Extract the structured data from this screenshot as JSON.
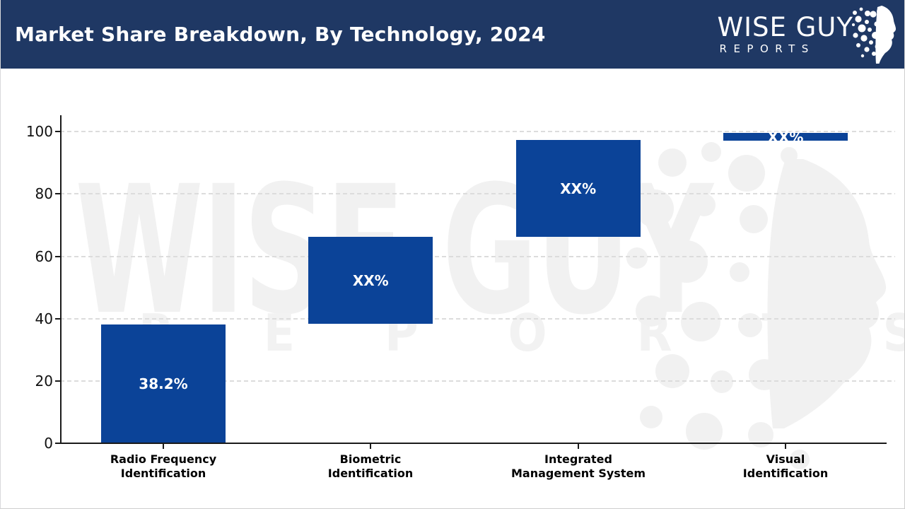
{
  "header": {
    "title": "Market Share Breakdown, By Technology, 2024",
    "brand_name": "WISE GUY",
    "brand_sub": "REPORTS",
    "bg_color": "#1f3864",
    "text_color": "#ffffff"
  },
  "icons": {
    "logo_head": "dotted-face-profile",
    "watermark_head": "dotted-face-profile"
  },
  "watermark": {
    "line1": "WISE GUY",
    "line2": "R E P O R T S",
    "color": "#f1f1f1"
  },
  "chart_data": {
    "type": "bar",
    "subtype": "waterfall-segments",
    "title": "Market Share Breakdown, By Technology, 2024",
    "xlabel": "",
    "ylabel": "",
    "ylim": [
      0,
      100
    ],
    "yticks": [
      0,
      20,
      40,
      60,
      80,
      100
    ],
    "grid": "horizontal-dashed",
    "legend": "none",
    "bar_color": "#0b4398",
    "bar_label_color": "#ffffff",
    "categories": [
      {
        "line1": "Radio Frequency",
        "line2": "Identification"
      },
      {
        "line1": "Biometric",
        "line2": "Identification"
      },
      {
        "line1": "Integrated",
        "line2": "Management System"
      },
      {
        "line1": "Visual",
        "line2": "Identification"
      }
    ],
    "segments": [
      {
        "category": "Radio Frequency Identification",
        "start": 0,
        "end": 38.2,
        "label": "38.2%"
      },
      {
        "category": "Biometric Identification",
        "start": 38.2,
        "end": 66.2,
        "label": "XX%"
      },
      {
        "category": "Integrated Management System",
        "start": 66.2,
        "end": 97.2,
        "label": "XX%"
      },
      {
        "category": "Visual Identification",
        "start": 97.2,
        "end": 99.6,
        "label": "XX%"
      }
    ]
  }
}
